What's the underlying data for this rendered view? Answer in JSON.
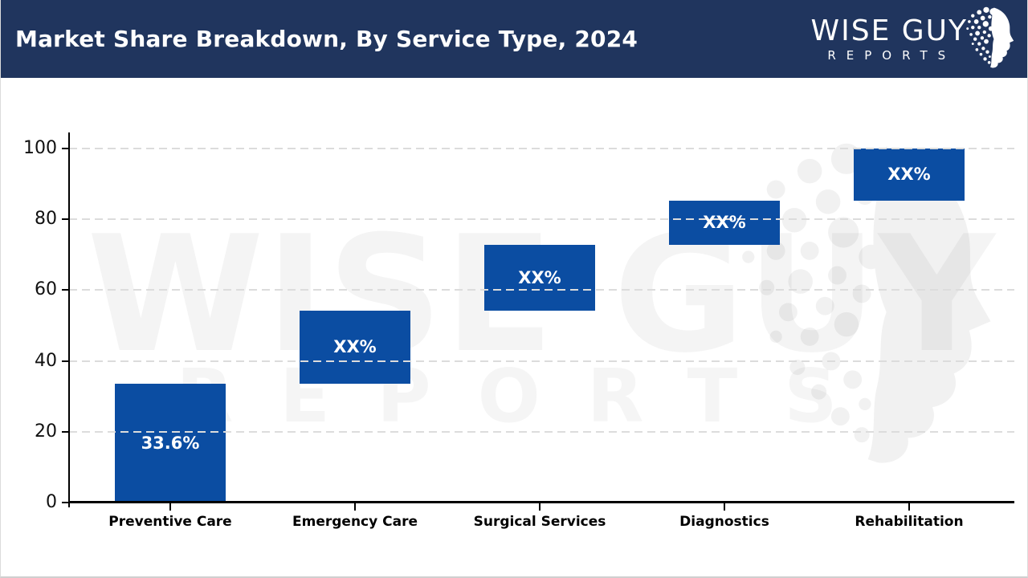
{
  "header": {
    "title": "Market Share Breakdown, By Service Type, 2024",
    "logo": {
      "line1": "WISE GUY",
      "line2": "REPORTS",
      "icon": "dotted-face-profile"
    }
  },
  "watermark": {
    "line1": "WISE GUY",
    "line2": "REPORTS",
    "icon": "dotted-face-profile"
  },
  "colors": {
    "header_bg": "#20355E",
    "bar": "#0B4DA2",
    "bar_label": "#FFFFFF",
    "gridline": "#DCDCDC",
    "axis": "#000000"
  },
  "chart_data": {
    "type": "bar",
    "subtype": "waterfall",
    "title": "Market Share Breakdown, By Service Type, 2024",
    "xlabel": "",
    "ylabel": "",
    "ylim": [
      0,
      100
    ],
    "yticks": [
      0,
      20,
      40,
      60,
      80,
      100
    ],
    "grid": "horizontal-dashed",
    "legend": "none",
    "categories": [
      "Preventive Care",
      "Emergency Care",
      "Surgical Services",
      "Diagnostics",
      "Rehabilitation"
    ],
    "segments": [
      {
        "category": "Preventive Care",
        "start": 0,
        "end": 33.6,
        "label": "33.6%"
      },
      {
        "category": "Emergency Care",
        "start": 33.6,
        "end": 54.2,
        "label": "XX%"
      },
      {
        "category": "Surgical Services",
        "start": 54.2,
        "end": 72.8,
        "label": "XX%"
      },
      {
        "category": "Diagnostics",
        "start": 72.8,
        "end": 85.3,
        "label": "XX%"
      },
      {
        "category": "Rehabilitation",
        "start": 85.3,
        "end": 100,
        "label": "XX%"
      }
    ]
  }
}
